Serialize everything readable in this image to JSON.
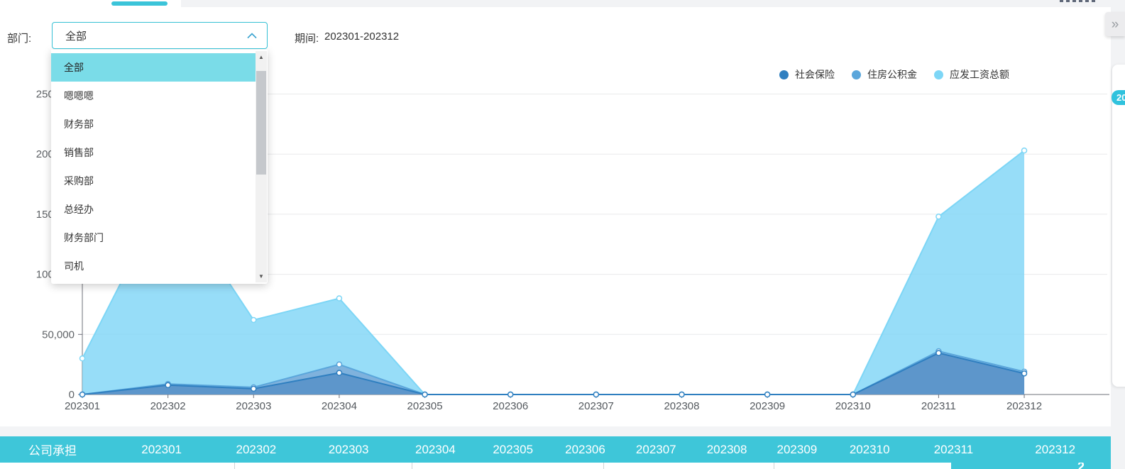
{
  "page": {
    "accent_cyan": "#3ec6d9",
    "background": "#ffffff"
  },
  "filters": {
    "department_label": "部门:",
    "department_value": "全部",
    "period_label": "期间:",
    "period_value": "202301-202312",
    "dropdown_options": [
      "全部",
      "嗯嗯嗯",
      "财务部",
      "销售部",
      "采购部",
      "总经办",
      "财务部门",
      "司机"
    ],
    "selected_option": "全部",
    "selected_option_bg": "#7adce8"
  },
  "chart_data": {
    "type": "area",
    "x": [
      "202301",
      "202302",
      "202303",
      "202304",
      "202305",
      "202306",
      "202307",
      "202308",
      "202309",
      "202310",
      "202311",
      "202312"
    ],
    "series": [
      {
        "name": "社会保险",
        "color": "#2f7fc0",
        "fill": "#5d96cb",
        "values": [
          0,
          7800,
          4800,
          18000,
          0,
          0,
          0,
          0,
          0,
          0,
          34500,
          17500
        ]
      },
      {
        "name": "住房公积金",
        "color": "#5aa6db",
        "fill": "#7fb2dd",
        "values": [
          0,
          8800,
          6000,
          25000,
          0,
          0,
          0,
          0,
          0,
          0,
          36000,
          19000
        ]
      },
      {
        "name": "应发工资总额",
        "color": "#7dd6f6",
        "fill": "rgba(125,213,246,0.8)",
        "values": [
          30000,
          170000,
          62000,
          80000,
          0,
          0,
          0,
          0,
          0,
          0,
          148000,
          203000
        ]
      }
    ],
    "y_ticks": [
      "0",
      "50,000",
      "100,000",
      "150,000",
      "200,000",
      "250,000"
    ],
    "ylim": [
      0,
      250000
    ],
    "grid": true,
    "legend_position": "top-right"
  },
  "side_panel": {
    "expand_icon": "»",
    "badge_text": "20"
  },
  "bottom_table": {
    "header": [
      "公司承担",
      "202301",
      "202302",
      "202303",
      "202304",
      "202305",
      "202306",
      "202307",
      "202308",
      "202309",
      "202310",
      "202311",
      "202312"
    ],
    "partial_next_row_text": "2"
  }
}
